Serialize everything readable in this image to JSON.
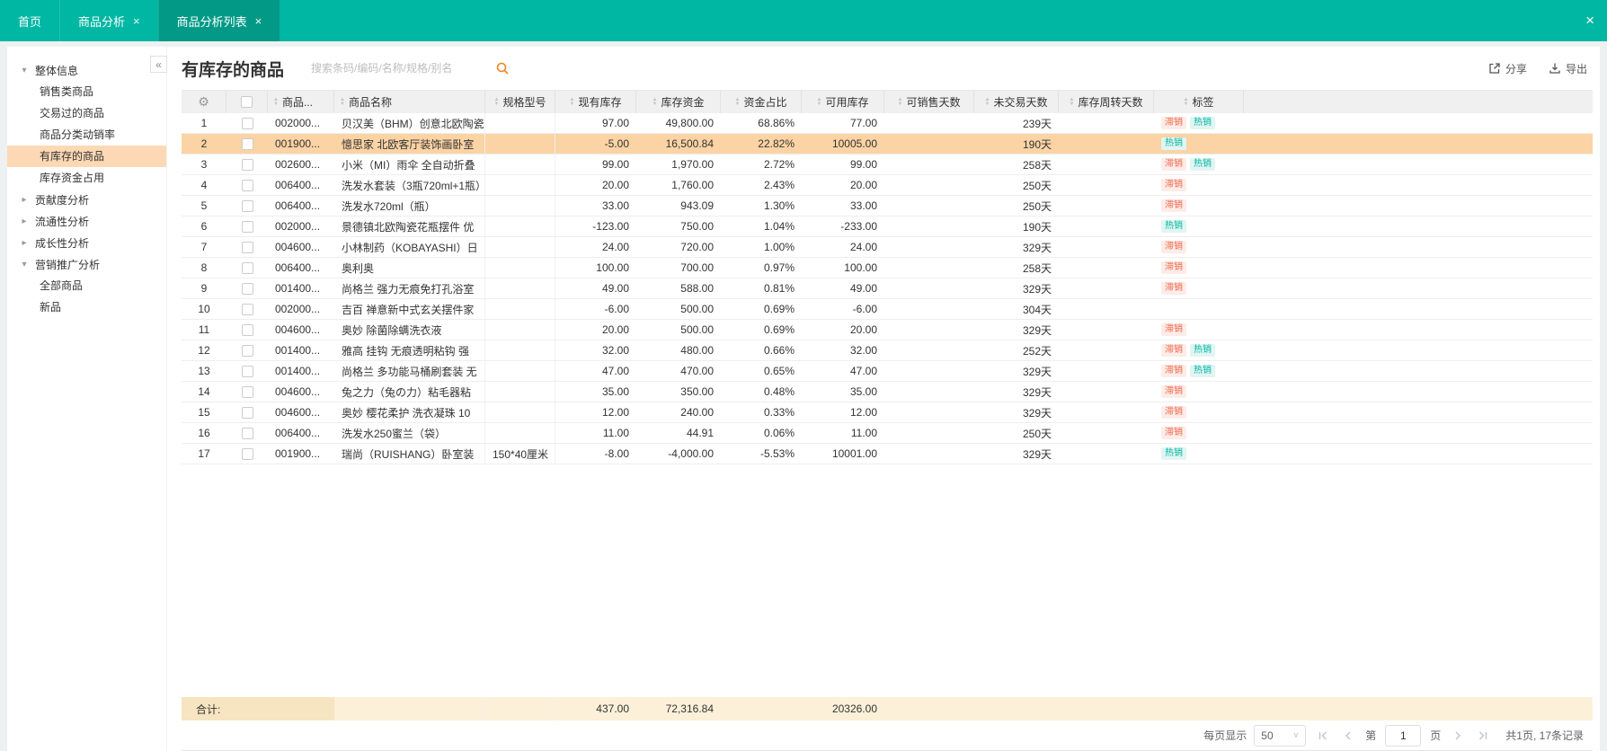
{
  "colors": {
    "accent": "#00b7a3",
    "tab_active": "#029a87",
    "selected_row": "#fbd3a4",
    "sidebar_selected": "#fcd9b4",
    "tag_slow_text": "#f0644a",
    "tag_slow_bg": "#fdece7",
    "tag_hot_text": "#00b7a3",
    "tag_hot_bg": "#e1f5f2",
    "total_bg": "#fcf0d8",
    "total_label_bg": "#f7e4c0",
    "search_icon": "#f08519"
  },
  "icons": {
    "sort_asc": "▲",
    "sort_desc": "▼",
    "chevron_down": "▾",
    "chevron_right": "▸",
    "select_chevron": "∨",
    "settings": "⚙",
    "close": "×",
    "collapse": "«"
  },
  "topbar": {
    "tabs": [
      {
        "label": "首页",
        "closable": false,
        "active": false
      },
      {
        "label": "商品分析",
        "closable": true,
        "active": false
      },
      {
        "label": "商品分析列表",
        "closable": true,
        "active": true
      }
    ]
  },
  "sidebar": {
    "groups": [
      {
        "label": "整体信息",
        "expanded": true,
        "children": [
          {
            "label": "销售类商品",
            "selected": false
          },
          {
            "label": "交易过的商品",
            "selected": false
          },
          {
            "label": "商品分类动销率",
            "selected": false
          },
          {
            "label": "有库存的商品",
            "selected": true
          },
          {
            "label": "库存资金占用",
            "selected": false
          }
        ]
      },
      {
        "label": "贡献度分析",
        "expanded": false,
        "children": []
      },
      {
        "label": "流通性分析",
        "expanded": false,
        "children": []
      },
      {
        "label": "成长性分析",
        "expanded": false,
        "children": []
      },
      {
        "label": "营销推广分析",
        "expanded": true,
        "children": [
          {
            "label": "全部商品",
            "selected": false
          },
          {
            "label": "新品",
            "selected": false
          }
        ]
      }
    ]
  },
  "main": {
    "title": "有库存的商品",
    "search_placeholder": "搜索条码/编码/名称/规格/别名",
    "share_label": "分享",
    "export_label": "导出",
    "table": {
      "columns": [
        {
          "key": "code",
          "label": "商品..."
        },
        {
          "key": "name",
          "label": "商品名称"
        },
        {
          "key": "spec",
          "label": "规格型号"
        },
        {
          "key": "stock",
          "label": "现有库存"
        },
        {
          "key": "fund",
          "label": "库存资金"
        },
        {
          "key": "ratio",
          "label": "资金占比"
        },
        {
          "key": "avail",
          "label": "可用库存"
        },
        {
          "key": "sell",
          "label": "可销售天数"
        },
        {
          "key": "notrade",
          "label": "未交易天数"
        },
        {
          "key": "turn",
          "label": "库存周转天数"
        },
        {
          "key": "tags",
          "label": "标签"
        }
      ],
      "tag_styles": {
        "滞销": "red",
        "热销": "teal"
      },
      "rows": [
        {
          "idx": "1",
          "code": "002000...",
          "name": "贝汉美（BHM）创意北欧陶瓷",
          "spec": "",
          "stock": "97.00",
          "fund": "49,800.00",
          "ratio": "68.86%",
          "avail": "77.00",
          "sell": "",
          "notrade": "239天",
          "turn": "",
          "tags": [
            "滞销",
            "热销"
          ],
          "selected": false
        },
        {
          "idx": "2",
          "code": "001900...",
          "name": "憶思家 北欧客厅装饰画卧室",
          "spec": "",
          "stock": "-5.00",
          "fund": "16,500.84",
          "ratio": "22.82%",
          "avail": "10005.00",
          "sell": "",
          "notrade": "190天",
          "turn": "",
          "tags": [
            "热销"
          ],
          "selected": true
        },
        {
          "idx": "3",
          "code": "002600...",
          "name": "小米（MI）雨伞 全自动折叠",
          "spec": "",
          "stock": "99.00",
          "fund": "1,970.00",
          "ratio": "2.72%",
          "avail": "99.00",
          "sell": "",
          "notrade": "258天",
          "turn": "",
          "tags": [
            "滞销",
            "热销"
          ],
          "selected": false
        },
        {
          "idx": "4",
          "code": "006400...",
          "name": "洗发水套装（3瓶720ml+1瓶）",
          "spec": "",
          "stock": "20.00",
          "fund": "1,760.00",
          "ratio": "2.43%",
          "avail": "20.00",
          "sell": "",
          "notrade": "250天",
          "turn": "",
          "tags": [
            "滞销"
          ],
          "selected": false
        },
        {
          "idx": "5",
          "code": "006400...",
          "name": "洗发水720ml（瓶）",
          "spec": "",
          "stock": "33.00",
          "fund": "943.09",
          "ratio": "1.30%",
          "avail": "33.00",
          "sell": "",
          "notrade": "250天",
          "turn": "",
          "tags": [
            "滞销"
          ],
          "selected": false
        },
        {
          "idx": "6",
          "code": "002000...",
          "name": "景德镇北欧陶瓷花瓶摆件 优",
          "spec": "",
          "stock": "-123.00",
          "fund": "750.00",
          "ratio": "1.04%",
          "avail": "-233.00",
          "sell": "",
          "notrade": "190天",
          "turn": "",
          "tags": [
            "热销"
          ],
          "selected": false
        },
        {
          "idx": "7",
          "code": "004600...",
          "name": "小林制药（KOBAYASHI）日",
          "spec": "",
          "stock": "24.00",
          "fund": "720.00",
          "ratio": "1.00%",
          "avail": "24.00",
          "sell": "",
          "notrade": "329天",
          "turn": "",
          "tags": [
            "滞销"
          ],
          "selected": false
        },
        {
          "idx": "8",
          "code": "006400...",
          "name": "奥利奥",
          "spec": "",
          "stock": "100.00",
          "fund": "700.00",
          "ratio": "0.97%",
          "avail": "100.00",
          "sell": "",
          "notrade": "258天",
          "turn": "",
          "tags": [
            "滞销"
          ],
          "selected": false
        },
        {
          "idx": "9",
          "code": "001400...",
          "name": "尚格兰 强力无痕免打孔浴室",
          "spec": "",
          "stock": "49.00",
          "fund": "588.00",
          "ratio": "0.81%",
          "avail": "49.00",
          "sell": "",
          "notrade": "329天",
          "turn": "",
          "tags": [
            "滞销"
          ],
          "selected": false
        },
        {
          "idx": "10",
          "code": "002000...",
          "name": "吉百 禅意新中式玄关摆件家",
          "spec": "",
          "stock": "-6.00",
          "fund": "500.00",
          "ratio": "0.69%",
          "avail": "-6.00",
          "sell": "",
          "notrade": "304天",
          "turn": "",
          "tags": [],
          "selected": false
        },
        {
          "idx": "11",
          "code": "004600...",
          "name": "奥妙 除菌除螨洗衣液",
          "spec": "",
          "stock": "20.00",
          "fund": "500.00",
          "ratio": "0.69%",
          "avail": "20.00",
          "sell": "",
          "notrade": "329天",
          "turn": "",
          "tags": [
            "滞销"
          ],
          "selected": false
        },
        {
          "idx": "12",
          "code": "001400...",
          "name": "雅高 挂钩 无痕透明粘钩 强",
          "spec": "",
          "stock": "32.00",
          "fund": "480.00",
          "ratio": "0.66%",
          "avail": "32.00",
          "sell": "",
          "notrade": "252天",
          "turn": "",
          "tags": [
            "滞销",
            "热销"
          ],
          "selected": false
        },
        {
          "idx": "13",
          "code": "001400...",
          "name": "尚格兰 多功能马桶刷套装 无",
          "spec": "",
          "stock": "47.00",
          "fund": "470.00",
          "ratio": "0.65%",
          "avail": "47.00",
          "sell": "",
          "notrade": "329天",
          "turn": "",
          "tags": [
            "滞销",
            "热销"
          ],
          "selected": false
        },
        {
          "idx": "14",
          "code": "004600...",
          "name": "兔之力（兔の力）粘毛器粘",
          "spec": "",
          "stock": "35.00",
          "fund": "350.00",
          "ratio": "0.48%",
          "avail": "35.00",
          "sell": "",
          "notrade": "329天",
          "turn": "",
          "tags": [
            "滞销"
          ],
          "selected": false
        },
        {
          "idx": "15",
          "code": "004600...",
          "name": "奥妙 樱花柔护 洗衣凝珠 10",
          "spec": "",
          "stock": "12.00",
          "fund": "240.00",
          "ratio": "0.33%",
          "avail": "12.00",
          "sell": "",
          "notrade": "329天",
          "turn": "",
          "tags": [
            "滞销"
          ],
          "selected": false
        },
        {
          "idx": "16",
          "code": "006400...",
          "name": "洗发水250蜜兰（袋）",
          "spec": "",
          "stock": "11.00",
          "fund": "44.91",
          "ratio": "0.06%",
          "avail": "11.00",
          "sell": "",
          "notrade": "250天",
          "turn": "",
          "tags": [
            "滞销"
          ],
          "selected": false
        },
        {
          "idx": "17",
          "code": "001900...",
          "name": "瑞尚（RUISHANG）卧室装",
          "spec": "150*40厘米",
          "stock": "-8.00",
          "fund": "-4,000.00",
          "ratio": "-5.53%",
          "avail": "10001.00",
          "sell": "",
          "notrade": "329天",
          "turn": "",
          "tags": [
            "热销"
          ],
          "selected": false
        }
      ],
      "total": {
        "label": "合计:",
        "stock": "437.00",
        "fund": "72,316.84",
        "avail": "20326.00"
      }
    },
    "pagination": {
      "page_size_label": "每页显示",
      "page_size": "50",
      "page_prefix": "第",
      "page_value": "1",
      "page_suffix": "页",
      "summary": "共1页, 17条记录"
    }
  }
}
